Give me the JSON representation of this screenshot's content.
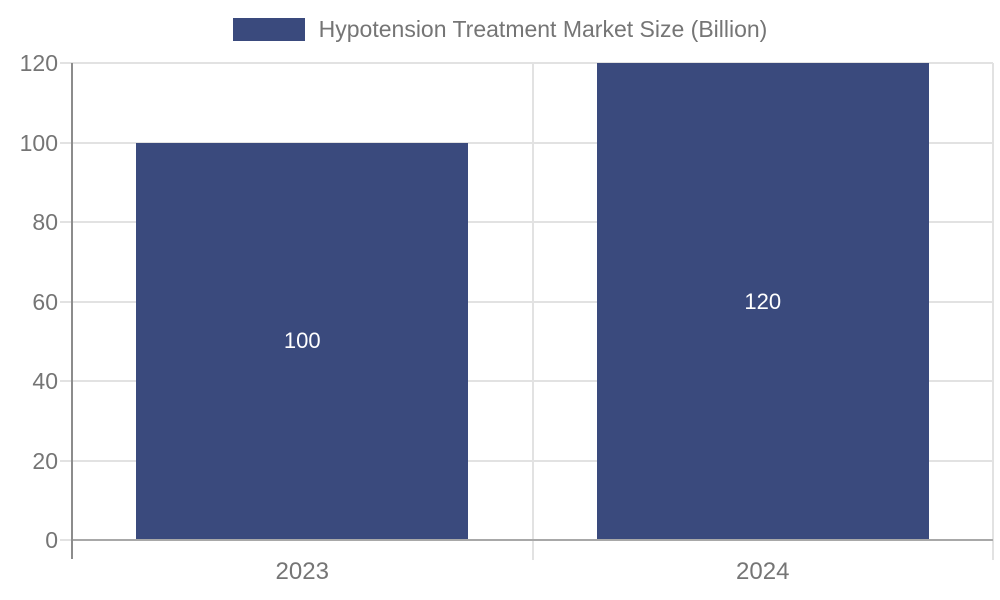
{
  "chart_data": {
    "type": "bar",
    "series_name": "Hypotension Treatment Market Size (Billion)",
    "categories": [
      "2023",
      "2024"
    ],
    "values": [
      100,
      120
    ],
    "bar_labels": [
      "100",
      "120"
    ],
    "title": "",
    "xlabel": "",
    "ylabel": "",
    "ylim": [
      0,
      120
    ],
    "yticks": [
      0,
      20,
      40,
      60,
      80,
      100,
      120
    ],
    "legend_position": "top-center",
    "grid": true,
    "colors": {
      "bar": "#3A4A7D",
      "bar_label_text": "#ffffff",
      "tick_text": "#757575",
      "legend_text": "#757575",
      "gridline": "#e2e2e2",
      "y_axis_line": "#8c8c8c",
      "x_axis_line": "#a8a8a8",
      "background": "#ffffff"
    }
  }
}
